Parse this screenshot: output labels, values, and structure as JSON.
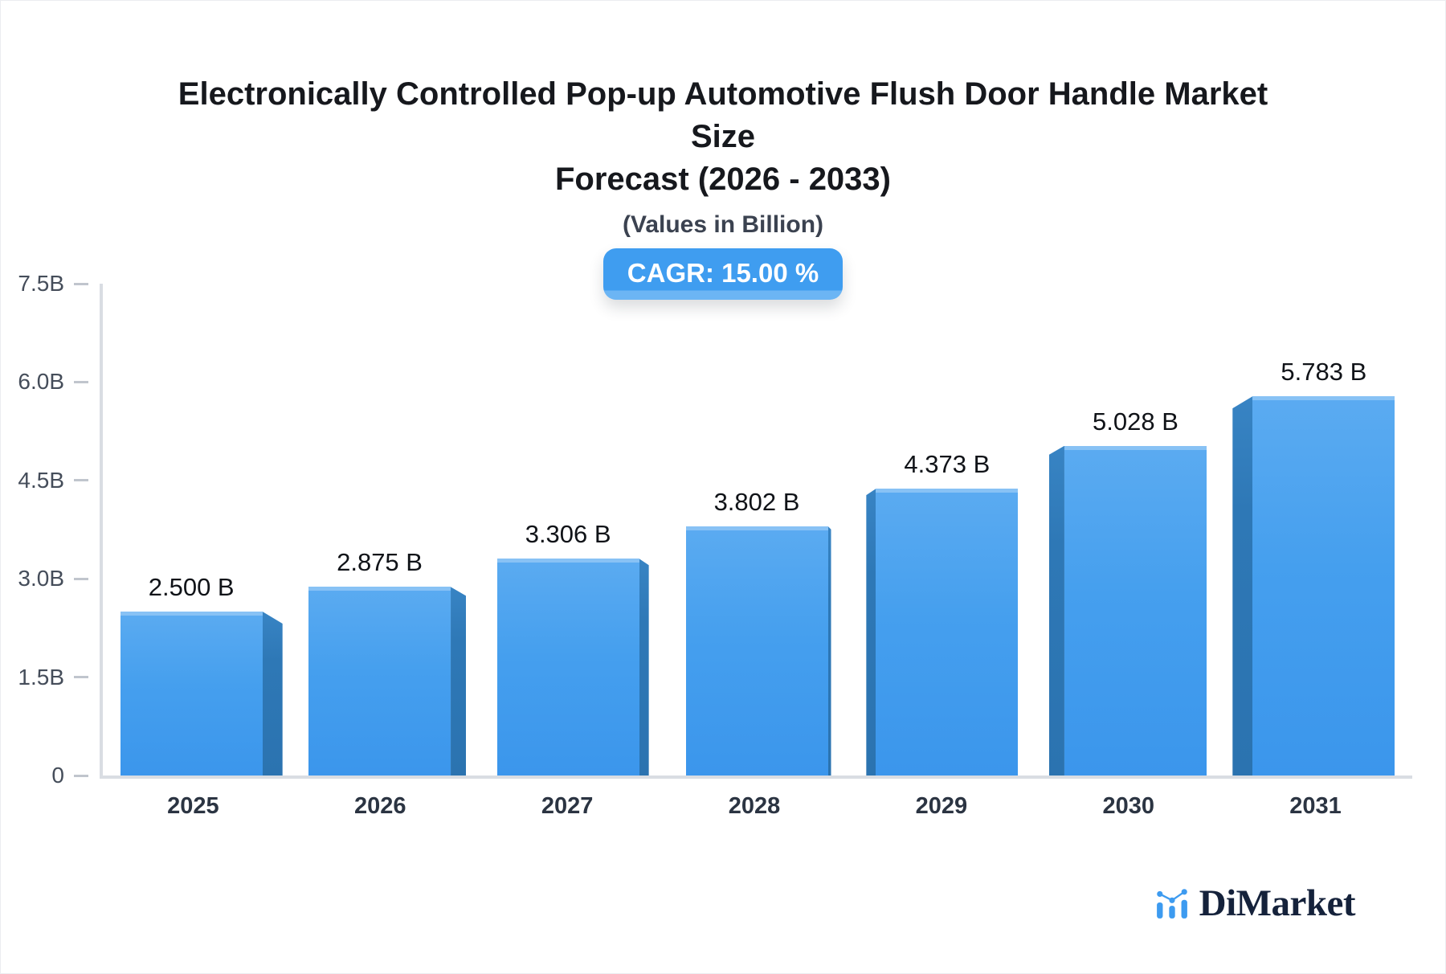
{
  "chart_data": {
    "type": "bar",
    "title": "Electronically Controlled Pop-up Automotive Flush Door Handle Market Size Forecast (2026 - 2033)",
    "title_lines": [
      "Electronically Controlled Pop-up Automotive Flush Door Handle Market Size",
      "Forecast (2026 - 2033)"
    ],
    "subtitle": "(Values in Billion)",
    "annotation": "CAGR: 15.00 %",
    "categories": [
      "2025",
      "2026",
      "2027",
      "2028",
      "2029",
      "2030",
      "2031"
    ],
    "values": [
      2.5,
      2.875,
      3.306,
      3.802,
      4.373,
      5.028,
      5.783
    ],
    "value_labels": [
      "2.500 B",
      "2.875 B",
      "3.306 B",
      "3.802 B",
      "4.373 B",
      "5.028 B",
      "5.783 B"
    ],
    "unit": "Billion",
    "xlabel": "",
    "ylabel": "",
    "ylim": [
      0,
      7.5
    ],
    "y_ticks": [
      {
        "value": 7.5,
        "label": "7.5B"
      },
      {
        "value": 6.0,
        "label": "6.0B"
      },
      {
        "value": 4.5,
        "label": "4.5B"
      },
      {
        "value": 3.0,
        "label": "3.0B"
      },
      {
        "value": 1.5,
        "label": "1.5B"
      },
      {
        "value": 0,
        "label": "0"
      }
    ],
    "grid": false,
    "legend": false,
    "bar_style": "3d-extruded-center-perspective"
  },
  "colors": {
    "bar_front_top": "#5babf1",
    "bar_front_bottom": "#3b96ec",
    "bar_side": "#2e78b6",
    "badge_bg": "#3f9df0",
    "badge_text": "#ffffff",
    "axis_line": "#d9dde3",
    "tick_dash": "#c0c5cd",
    "title_text": "#16181d",
    "subtitle_text": "#3b4250",
    "x_label_text": "#2b3442",
    "y_label_text": "#454d5a",
    "value_label_text": "#101318",
    "logo_text": "#15223b",
    "logo_icon": "#3d9bf0"
  },
  "branding": {
    "name": "DiMarket"
  }
}
